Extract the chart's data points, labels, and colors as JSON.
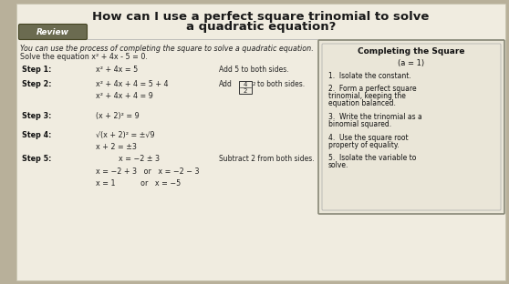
{
  "title_line1": "How can I use a perfect square trinomial to solve",
  "title_line2": "a quadratic equation?",
  "review_label": "Review",
  "intro_text": "You can use the process of completing the square to solve a quadratic equation.",
  "solve_text": "Solve the equation x² + 4x - 5 = 0.",
  "sidebar_title": "Completing the Square",
  "sidebar_subtitle": "(a = 1)",
  "sidebar_items": [
    "1.  Isolate the constant.",
    "2.  Form a perfect square\n     trinomial, keeping the\n     equation balanced.",
    "3.  Write the trinomial as a\n     binomial squared.",
    "4.  Use the square root\n     property of equality.",
    "5.  Isolate the variable to\n     solve."
  ],
  "bg_color": "#b8b09a",
  "paper_color": "#f0ece0",
  "sidebar_bg": "#eae6d8",
  "review_bg": "#6b6b50",
  "review_text_color": "#ffffff",
  "title_color": "#1a1a1a",
  "body_color": "#222222",
  "step_label_color": "#111111",
  "sidebar_border": "#999977"
}
